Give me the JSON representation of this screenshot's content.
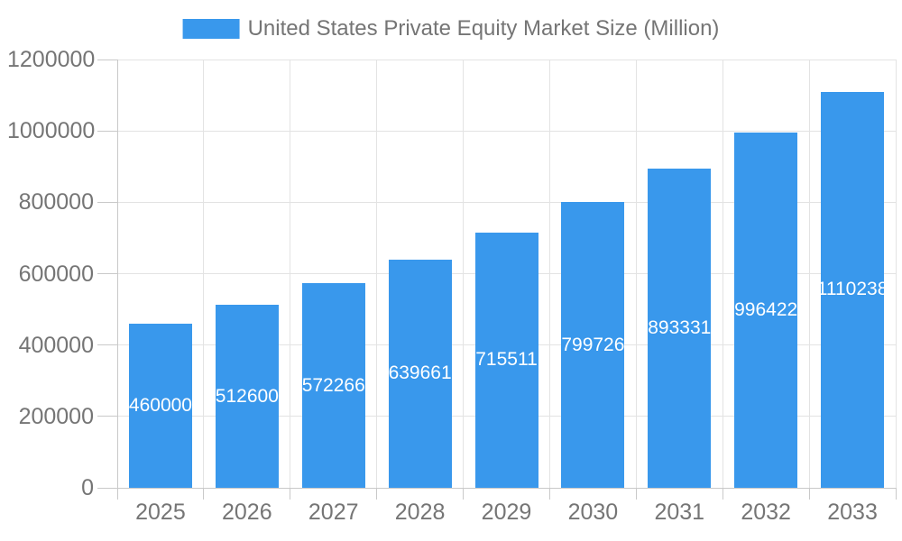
{
  "legend": {
    "label": "United States Private Equity Market Size (Million)"
  },
  "chart_data": {
    "type": "bar",
    "title": "United States Private Equity Market Size (Million)",
    "series_name": "United States Private Equity Market Size (Million)",
    "categories": [
      "2025",
      "2026",
      "2027",
      "2028",
      "2029",
      "2030",
      "2031",
      "2032",
      "2033"
    ],
    "values": [
      460000,
      512600,
      572266,
      639661,
      715511,
      799726,
      893331,
      996422,
      1110238
    ],
    "value_labels_shown": [
      "460000",
      "512600",
      "572266",
      "639661",
      "715511",
      "799726",
      "893331",
      "996422",
      "1110238"
    ],
    "xlabel": "",
    "ylabel": "",
    "ylim": [
      0,
      1200000
    ],
    "ytick_step": 200000,
    "yticks": [
      0,
      200000,
      400000,
      600000,
      800000,
      1000000,
      1200000
    ],
    "grid": "horizontal and vertical light gray gridlines",
    "legend_position": "top-center",
    "value_label_position": "inside-center, clipped to bar width",
    "colors": {
      "bar": "#3998ec",
      "value_label": "#ffffff",
      "axis_text": "#757575",
      "gridline": "#e3e3e3",
      "axis_line": "#c9c9c9"
    }
  }
}
